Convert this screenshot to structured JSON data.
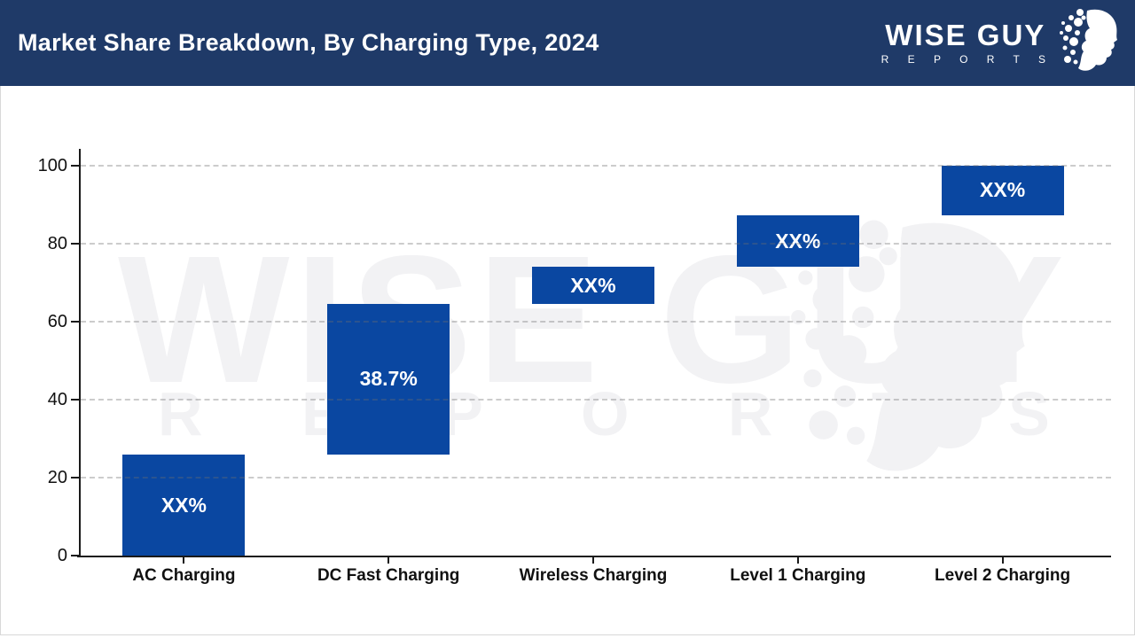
{
  "header": {
    "title": "Market Share Breakdown, By Charging Type, 2024",
    "logo": {
      "line1": "WISE GUY",
      "line2": "R E P O R T S"
    }
  },
  "watermark": {
    "line1": "WISE GUY",
    "line2": "R E P O R T S"
  },
  "colors": {
    "header_bg": "#1f3a68",
    "bar_blue": "#0a47a1",
    "gridline": "#d9d9d9",
    "axis": "#1a1a1a",
    "watermark": "#f2f2f4"
  },
  "chart_data": {
    "type": "bar",
    "subtype": "waterfall",
    "title": "Market Share Breakdown, By Charging Type, 2024",
    "xlabel": "",
    "ylabel": "",
    "ylim": [
      0,
      104
    ],
    "yticks": [
      0,
      20,
      40,
      60,
      80,
      100
    ],
    "grid": "horizontal dashed",
    "legend": "none",
    "bar_color": "#0a47a1",
    "categories": [
      "AC Charging",
      "DC Fast Charging",
      "Wireless Charging",
      "Level 1 Charging",
      "Level 2 Charging"
    ],
    "segments": [
      {
        "category": "AC Charging",
        "start": 0,
        "end": 25.9,
        "value": 25.9,
        "label": "XX%"
      },
      {
        "category": "DC Fast Charging",
        "start": 25.9,
        "end": 64.6,
        "value": 38.7,
        "label": "38.7%"
      },
      {
        "category": "Wireless Charging",
        "start": 64.6,
        "end": 74.0,
        "value": 9.4,
        "label": "XX%"
      },
      {
        "category": "Level 1 Charging",
        "start": 74.0,
        "end": 87.3,
        "value": 13.3,
        "label": "XX%"
      },
      {
        "category": "Level 2 Charging",
        "start": 87.3,
        "end": 100.0,
        "value": 12.7,
        "label": "XX%"
      }
    ]
  }
}
